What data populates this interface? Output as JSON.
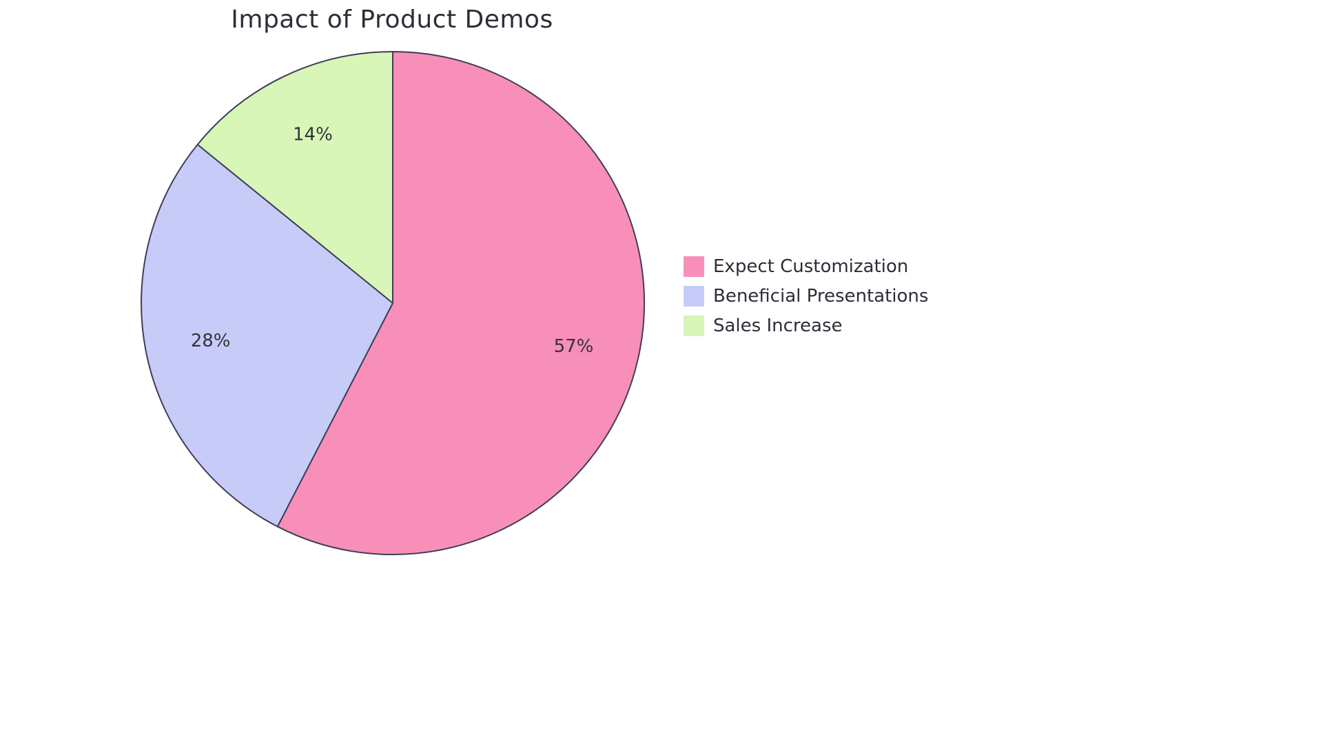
{
  "chart_data": {
    "type": "pie",
    "title": "Impact of Product Demos",
    "slices": [
      {
        "label": "Expect Customization",
        "value": 57,
        "display": "57%",
        "color": "#F78FB9"
      },
      {
        "label": "Beneficial Presentations",
        "value": 28,
        "display": "28%",
        "color": "#C7CBF7"
      },
      {
        "label": "Sales Increase",
        "value": 14,
        "display": "14%",
        "color": "#D7F6B7"
      }
    ],
    "start_angle_deg": -90,
    "direction": "clockwise",
    "legend_position": "right",
    "stroke_color": "#3F3D56",
    "label_color": "#32323c",
    "label_radius_fraction": 0.74,
    "background": "#ffffff"
  }
}
